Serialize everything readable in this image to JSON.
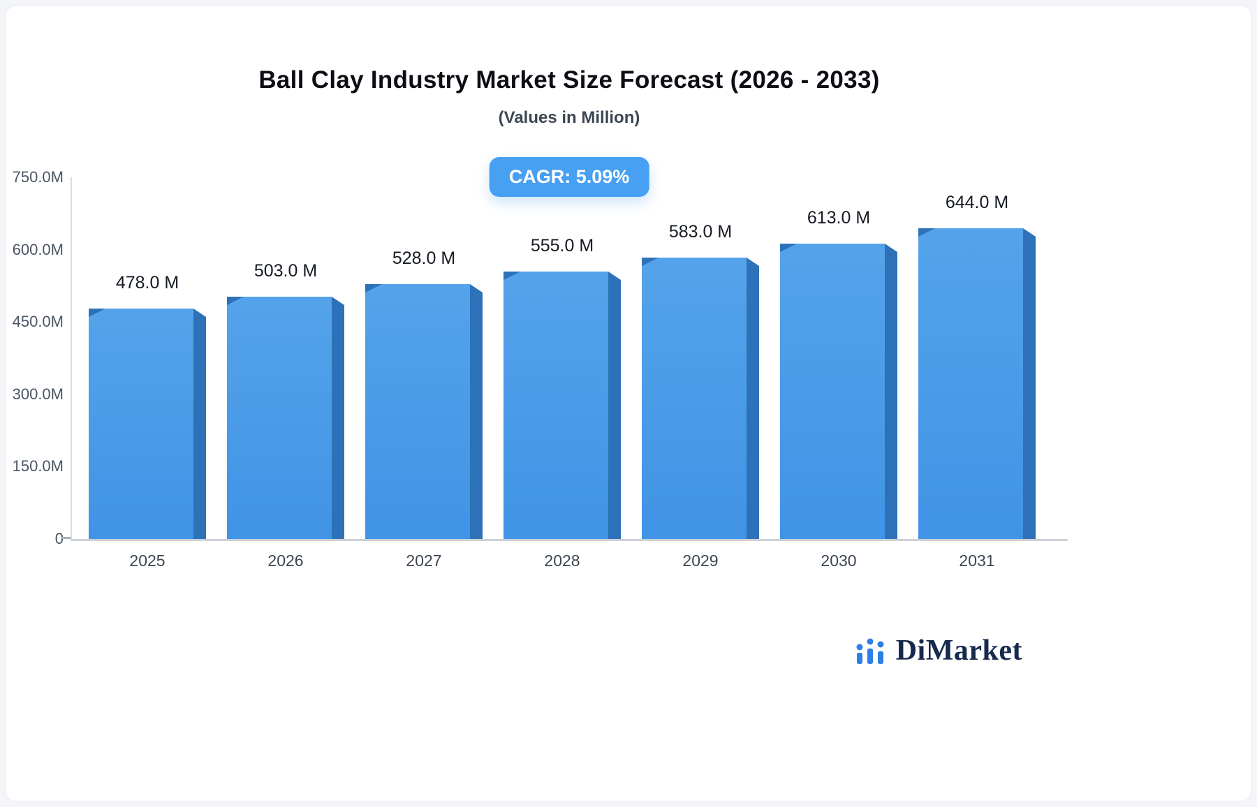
{
  "chart_data": {
    "type": "bar",
    "title": "Ball Clay Industry Market Size Forecast (2026 - 2033)",
    "subtitle": "(Values in Million)",
    "cagr_badge": "CAGR: 5.09%",
    "categories": [
      "2025",
      "2026",
      "2027",
      "2028",
      "2029",
      "2030",
      "2031"
    ],
    "values": [
      478.0,
      503.0,
      528.0,
      555.0,
      583.0,
      613.0,
      644.0
    ],
    "bar_labels": [
      "478.0 M",
      "503.0 M",
      "528.0 M",
      "555.0 M",
      "583.0 M",
      "613.0 M",
      "644.0 M"
    ],
    "unit": "M",
    "ylim": [
      0,
      750
    ],
    "y_ticks": [
      0,
      150,
      300,
      450,
      600,
      750
    ],
    "y_tick_labels": [
      "0",
      "150.0M",
      "300.0M",
      "450.0M",
      "600.0M",
      "750.0M"
    ],
    "grid": false,
    "legend": false,
    "bar_color_top": "#54a3ea",
    "bar_color_bottom": "#4193e6",
    "bar_side_color": "#2d72b8",
    "badge_color": "#47a0f2"
  },
  "branding": {
    "logo_text": "DiMarket",
    "logo_icon": "bar-chart-dots-icon",
    "logo_color": "#2e7ee8"
  }
}
